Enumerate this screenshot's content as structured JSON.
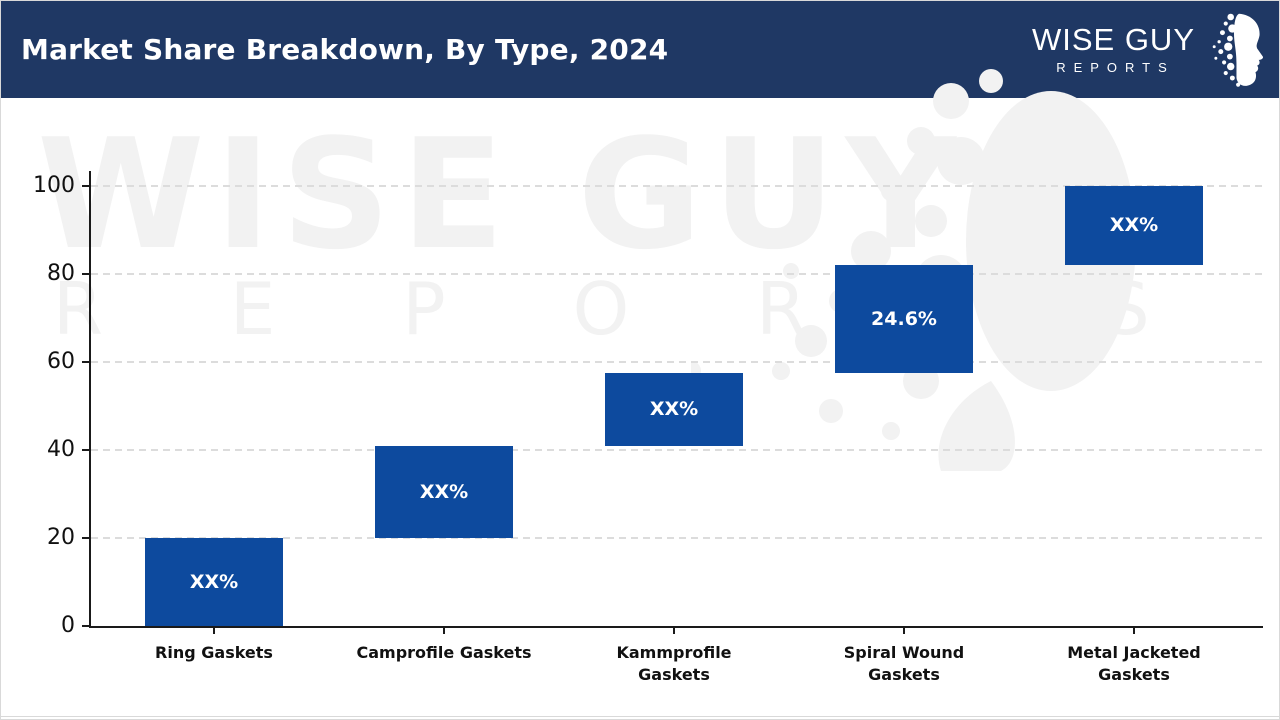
{
  "header": {
    "title": "Market Share Breakdown, By Type, 2024",
    "bg_color": "#1f3864",
    "logo": {
      "line1": "WISE GUY",
      "line2": "REPORTS"
    }
  },
  "watermark": {
    "line1": "WISE GUY",
    "line2": "R E P O R T S"
  },
  "chart_data": {
    "type": "bar",
    "subtype": "waterfall-floating-bars",
    "title": "Market Share Breakdown, By Type, 2024",
    "categories": [
      "Ring Gaskets",
      "Camprofile Gaskets",
      "Kammprofile Gaskets",
      "Spiral Wound Gaskets",
      "Metal Jacketed Gaskets"
    ],
    "xtick_labels": [
      "Ring Gaskets",
      "Camprofile Gaskets",
      "Kammprofile\nGaskets",
      "Spiral Wound\nGaskets",
      "Metal Jacketed\nGaskets"
    ],
    "segments": [
      {
        "category": "Ring Gaskets",
        "start": 0,
        "end": 20,
        "label": "XX%"
      },
      {
        "category": "Camprofile Gaskets",
        "start": 20,
        "end": 41,
        "label": "XX%"
      },
      {
        "category": "Kammprofile Gaskets",
        "start": 41,
        "end": 57.5,
        "label": "XX%"
      },
      {
        "category": "Spiral Wound Gaskets",
        "start": 57.5,
        "end": 82.1,
        "label": "24.6%"
      },
      {
        "category": "Metal Jacketed Gaskets",
        "start": 82.1,
        "end": 100,
        "label": "XX%"
      }
    ],
    "yticks": [
      0,
      20,
      40,
      60,
      80,
      100
    ],
    "ylim": [
      0,
      100
    ],
    "bar_color": "#0d4a9e",
    "grid": "horizontal dashed lines at y ticks",
    "legend": "none",
    "values_masked_as": "XX%"
  }
}
